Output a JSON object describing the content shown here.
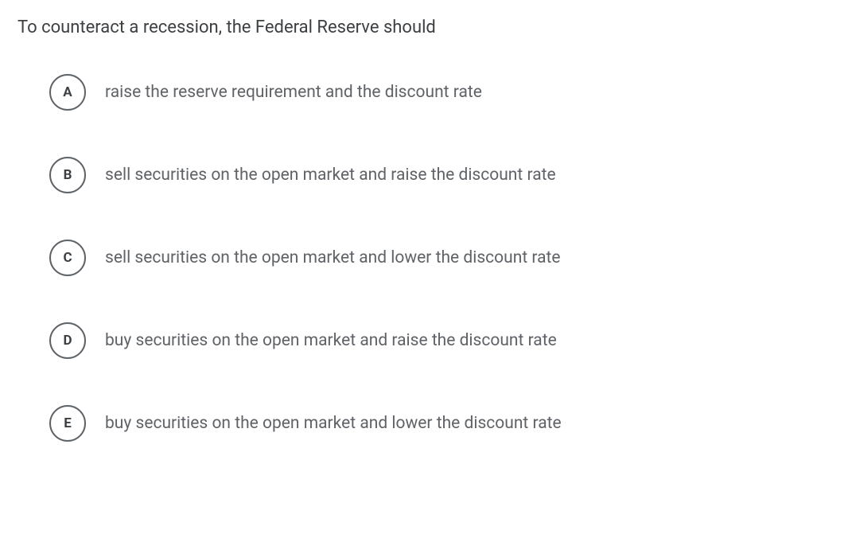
{
  "question": {
    "text": "To counteract a recession, the Federal Reserve should"
  },
  "options": [
    {
      "letter": "A",
      "text": "raise the reserve requirement and the discount rate"
    },
    {
      "letter": "B",
      "text": "sell securities on the open market and raise the discount rate"
    },
    {
      "letter": "C",
      "text": "sell securities on the open market and lower the discount rate"
    },
    {
      "letter": "D",
      "text": "buy securities on the open market and raise the discount rate"
    },
    {
      "letter": "E",
      "text": "buy securities on the open market and lower the discount rate"
    }
  ],
  "styling": {
    "background_color": "#ffffff",
    "question_color": "#3c4043",
    "question_fontsize": 22,
    "option_text_color": "#5f6368",
    "option_text_fontsize": 21,
    "circle_border_color": "#5f6368",
    "circle_diameter": 46,
    "circle_border_width": 2,
    "letter_color": "#3c4043",
    "letter_fontsize": 17,
    "letter_fontweight": 700,
    "row_gap": 58,
    "options_left_indent": 40
  }
}
